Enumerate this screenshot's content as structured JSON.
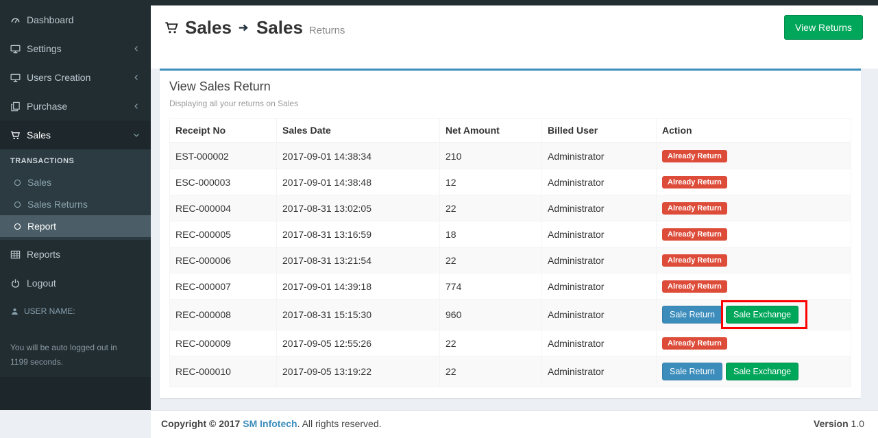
{
  "sidebar": {
    "items": [
      {
        "label": "Dashboard"
      },
      {
        "label": "Settings"
      },
      {
        "label": "Users Creation"
      },
      {
        "label": "Purchase"
      },
      {
        "label": "Sales"
      }
    ],
    "section_title": "TRANSACTIONS",
    "sub_items": [
      {
        "label": "Sales"
      },
      {
        "label": "Sales Returns"
      },
      {
        "label": "Report"
      }
    ],
    "reports_label": "Reports",
    "logout_label": "Logout",
    "user_name_label": "USER NAME:",
    "auto_logout_notice": "You will be auto logged out in 1199 seconds."
  },
  "header": {
    "title_primary": "Sales",
    "title_secondary": "Sales",
    "title_suffix": "Returns",
    "view_returns_button": "View Returns"
  },
  "panel": {
    "title": "View Sales Return",
    "subtitle": "Displaying all your returns on Sales"
  },
  "table": {
    "columns": [
      "Receipt No",
      "Sales Date",
      "Net Amount",
      "Billed User",
      "Action"
    ],
    "rows": [
      {
        "receipt": "EST-000002",
        "date": "2017-09-01 14:38:34",
        "amount": "210",
        "user": "Administrator",
        "actions": [
          {
            "label": "Already Return",
            "style": "danger"
          }
        ]
      },
      {
        "receipt": "ESC-000003",
        "date": "2017-09-01 14:38:48",
        "amount": "12",
        "user": "Administrator",
        "actions": [
          {
            "label": "Already Return",
            "style": "danger"
          }
        ]
      },
      {
        "receipt": "REC-000004",
        "date": "2017-08-31 13:02:05",
        "amount": "22",
        "user": "Administrator",
        "actions": [
          {
            "label": "Already Return",
            "style": "danger"
          }
        ]
      },
      {
        "receipt": "REC-000005",
        "date": "2017-08-31 13:16:59",
        "amount": "18",
        "user": "Administrator",
        "actions": [
          {
            "label": "Already Return",
            "style": "danger"
          }
        ]
      },
      {
        "receipt": "REC-000006",
        "date": "2017-08-31 13:21:54",
        "amount": "22",
        "user": "Administrator",
        "actions": [
          {
            "label": "Already Return",
            "style": "danger"
          }
        ]
      },
      {
        "receipt": "REC-000007",
        "date": "2017-09-01 14:39:18",
        "amount": "774",
        "user": "Administrator",
        "actions": [
          {
            "label": "Already Return",
            "style": "danger"
          }
        ]
      },
      {
        "receipt": "REC-000008",
        "date": "2017-08-31 15:15:30",
        "amount": "960",
        "user": "Administrator",
        "actions": [
          {
            "label": "Sale Return",
            "style": "primary"
          },
          {
            "label": "Sale Exchange",
            "style": "success",
            "highlighted": true
          }
        ]
      },
      {
        "receipt": "REC-000009",
        "date": "2017-09-05 12:55:26",
        "amount": "22",
        "user": "Administrator",
        "actions": [
          {
            "label": "Already Return",
            "style": "danger"
          }
        ]
      },
      {
        "receipt": "REC-000010",
        "date": "2017-09-05 13:19:22",
        "amount": "22",
        "user": "Administrator",
        "actions": [
          {
            "label": "Sale Return",
            "style": "primary"
          },
          {
            "label": "Sale Exchange",
            "style": "success"
          }
        ]
      }
    ]
  },
  "footer": {
    "copyright_bold": "Copyright © 2017",
    "brand": "SM Infotech",
    "rights": ". All rights reserved.",
    "version_label": "Version",
    "version_value": "1.0"
  },
  "colors": {
    "accent_blue": "#3c8dbc",
    "success_green": "#00a65a",
    "danger_red": "#dd4b39",
    "annotation_red": "#ff0000",
    "sidebar_bg": "#222d32"
  }
}
